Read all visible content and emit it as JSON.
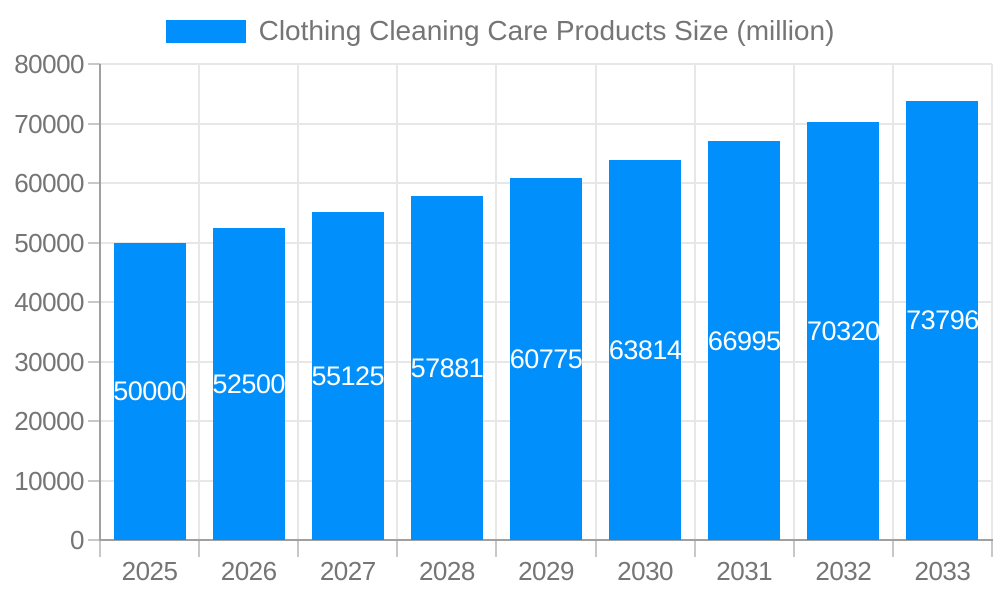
{
  "chart_data": {
    "type": "bar",
    "title": "Clothing Cleaning Care Products Size (million)",
    "categories": [
      "2025",
      "2026",
      "2027",
      "2028",
      "2029",
      "2030",
      "2031",
      "2032",
      "2033"
    ],
    "values": [
      50000,
      52500,
      55125,
      57881,
      60775,
      63814,
      66995,
      70320,
      73796
    ],
    "xlabel": "",
    "ylabel": "",
    "ylim": [
      0,
      80000
    ],
    "ytick_interval": 10000,
    "yticks": [
      0,
      10000,
      20000,
      30000,
      40000,
      50000,
      60000,
      70000,
      80000
    ],
    "grid": true,
    "legend_position": "top",
    "bar_value_labels": "inside-middle"
  },
  "legend": {
    "swatch_icon": "blue-rect-swatch"
  },
  "colors": {
    "bar": "#008FFB",
    "bar_label": "#FFFFFF",
    "grid": "#E7E7E7",
    "axis": "#A0A0A0",
    "tick": "#C8C8C8",
    "text": "#757575",
    "background": "#FFFFFF"
  }
}
